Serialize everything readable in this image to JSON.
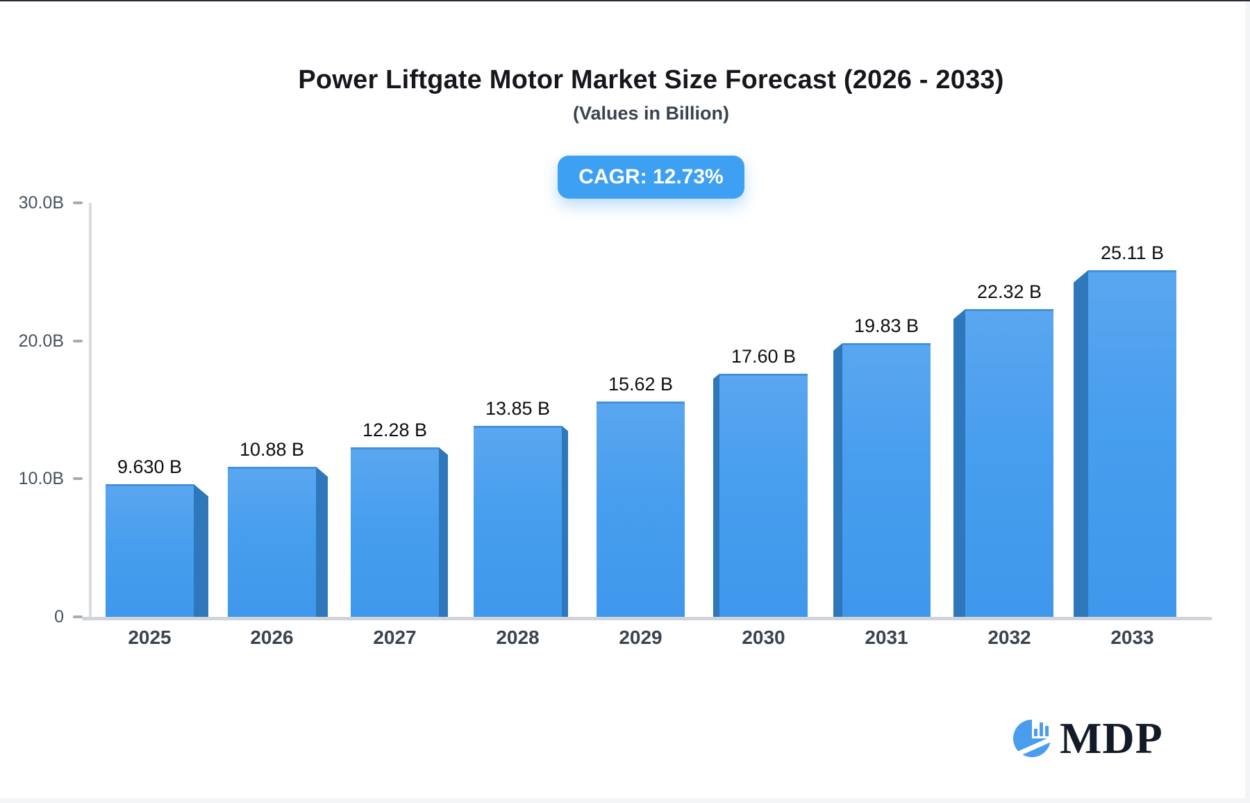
{
  "header": {
    "title": "Power Liftgate Motor Market Size Forecast (2026 - 2033)",
    "subtitle": "(Values in Billion)",
    "cagr_badge": "CAGR: 12.73%"
  },
  "chart_data": {
    "type": "bar",
    "title": "Power Liftgate Motor Market Size Forecast (2026 - 2033)",
    "subtitle": "(Values in Billion)",
    "cagr_percent": 12.73,
    "categories": [
      "2025",
      "2026",
      "2027",
      "2028",
      "2029",
      "2030",
      "2031",
      "2032",
      "2033"
    ],
    "values": [
      9.63,
      10.88,
      12.28,
      13.85,
      15.62,
      17.6,
      19.83,
      22.32,
      25.11
    ],
    "value_labels": [
      "9.630 B",
      "10.88 B",
      "12.28 B",
      "13.85 B",
      "15.62 B",
      "17.60 B",
      "19.83 B",
      "22.32 B",
      "25.11 B"
    ],
    "xlabel": "",
    "ylabel": "",
    "ylim": [
      0,
      30
    ],
    "y_ticks": [
      {
        "value": 30,
        "label": "30.0B"
      },
      {
        "value": 20,
        "label": "20.0B"
      },
      {
        "value": 10,
        "label": "10.0B"
      },
      {
        "value": 0,
        "label": "0"
      }
    ],
    "grid": false,
    "legend": false,
    "bar_color": "#3f98ec",
    "bar_side_color": "#2e77ba"
  },
  "logo": {
    "text": "MDP"
  },
  "colors": {
    "badge_bg": "#3da0f2",
    "badge_text": "#ffffff",
    "axis_line": "#d9dbdf",
    "baseline": "#d0d4d9",
    "tick_text": "#47525f",
    "year_text": "#3a4450",
    "value_text": "#0d0e10"
  }
}
